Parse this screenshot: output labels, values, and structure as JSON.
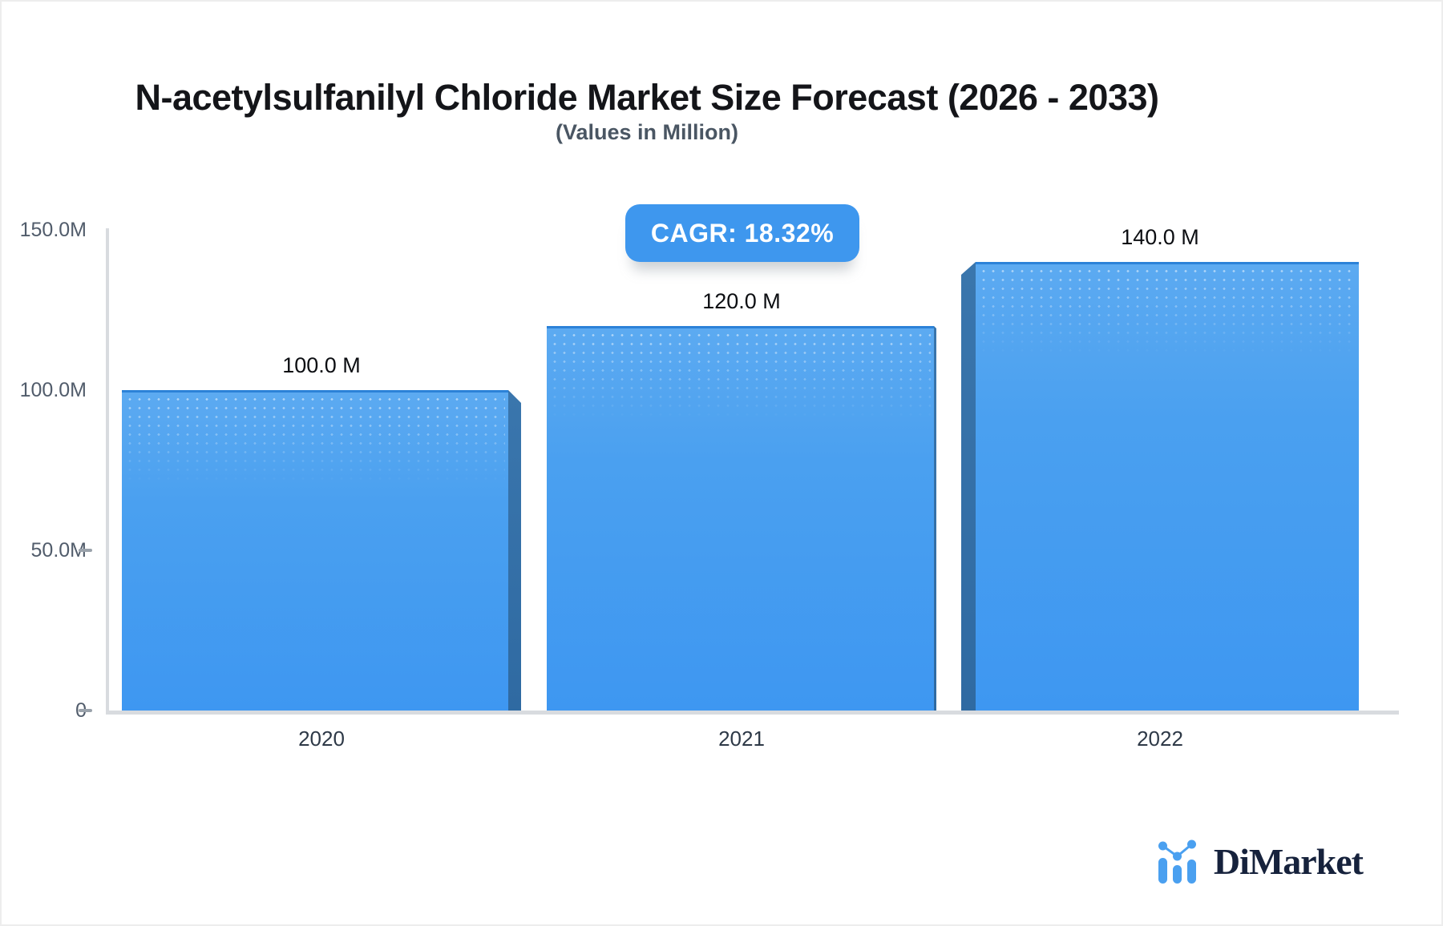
{
  "header": {
    "title": "N-acetylsulfanilyl Chloride Market Size Forecast (2026 - 2033)",
    "subtitle": "(Values in Million)",
    "cagr_label": "CAGR: 18.32%"
  },
  "chart_data": {
    "type": "bar",
    "title": "N-acetylsulfanilyl Chloride Market Size Forecast (2026 - 2033)",
    "subtitle": "(Values in Million)",
    "categories": [
      "2020",
      "2021",
      "2022"
    ],
    "values": [
      100,
      120,
      140
    ],
    "value_labels": [
      "100.0 M",
      "120.0 M",
      "140.0 M"
    ],
    "cagr_annotation": "CAGR: 18.32%",
    "ylim": [
      0,
      150
    ],
    "yticks": [
      {
        "value": 150,
        "label": "150.0M",
        "dash": false
      },
      {
        "value": 100,
        "label": "100.0M",
        "dash": false
      },
      {
        "value": 50,
        "label": "50.0M",
        "dash": true
      },
      {
        "value": 0,
        "label": "0",
        "dash": true
      }
    ],
    "xlabel": "",
    "ylabel": "",
    "grid": false,
    "legend": false,
    "pseudo_3d": true,
    "bar_color": "#459ff1",
    "bar_side_color": "#336fa8",
    "bar_top_edge_color": "#2c82d8",
    "accent_color": "#3e97ee",
    "axis_color": "#d8dbdf"
  },
  "footer": {
    "brand": "DiMarket"
  }
}
